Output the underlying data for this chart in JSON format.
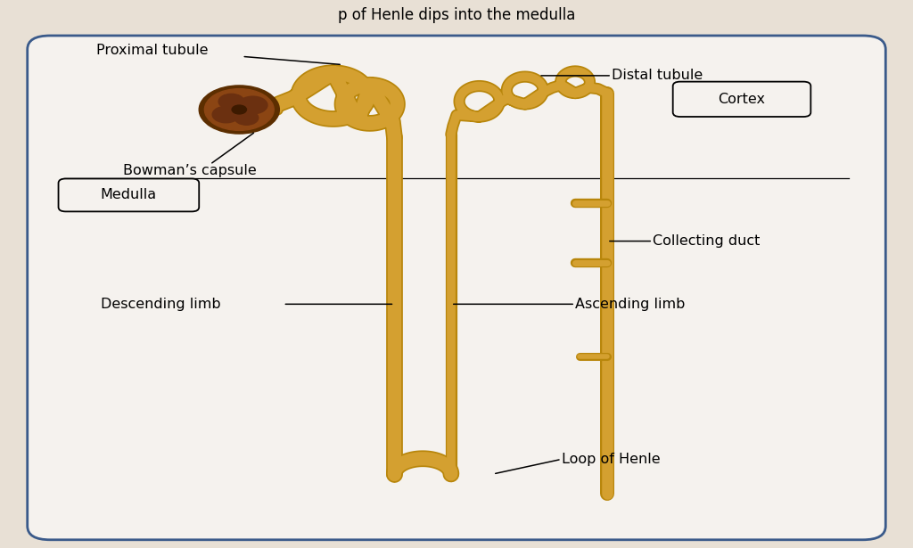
{
  "bg_color": "#e8e0d5",
  "box_color": "#f5f2ee",
  "box_border_color": "#3a5a8a",
  "tubule_color": "#d4a030",
  "tubule_edge_color": "#b8860b",
  "glomerulus_color": "#8B4513",
  "glomerulus_dark": "#5c2e00",
  "labels": {
    "proximal_tubule": "Proximal tubule",
    "distal_tubule": "Distal tubule",
    "cortex": "Cortex",
    "bowmans_capsule": "Bowman’s capsule",
    "medulla": "Medulla",
    "collecting_duct": "Collecting duct",
    "descending_limb": "Descending limb",
    "ascending_limb": "Ascending limb",
    "loop_of_henle": "Loop of Henle"
  },
  "title_partial": "p of Henle dips into the medulla"
}
